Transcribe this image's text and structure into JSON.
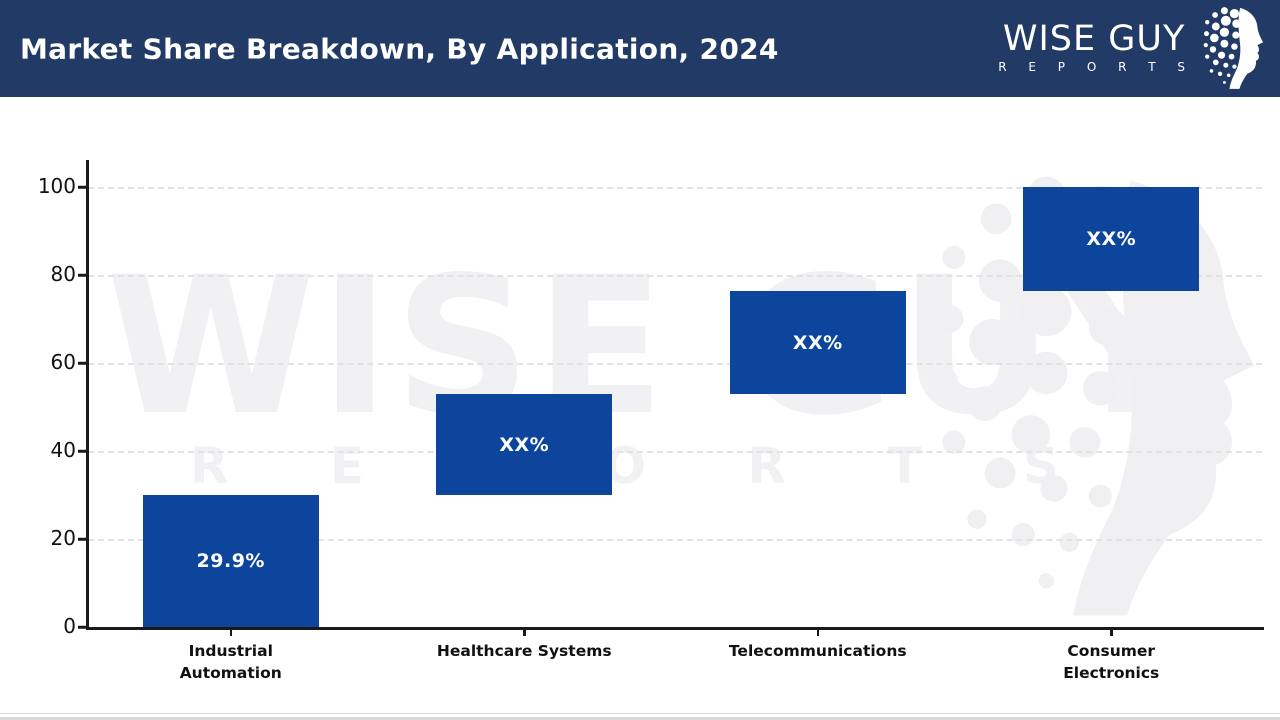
{
  "header": {
    "title": "Market Share Breakdown, By Application, 2024"
  },
  "logo": {
    "name": "WISE GUY",
    "sub": "R E P O R T S"
  },
  "watermark": {
    "name": "WISE GUY",
    "sub": "R E P O R T S"
  },
  "chart_data": {
    "type": "bar",
    "subtype": "floating-waterfall-segments",
    "title": "Market Share Breakdown, By Application, 2024",
    "categories": [
      "Industrial Automation",
      "Healthcare Systems",
      "Telecommunications",
      "Consumer Electronics"
    ],
    "xtick_display": [
      "Industrial\nAutomation",
      "Healthcare Systems",
      "Telecommunications",
      "Consumer\nElectronics"
    ],
    "segments": [
      {
        "category": "Industrial Automation",
        "start": 0,
        "end": 29.9,
        "label": "29.9%"
      },
      {
        "category": "Healthcare Systems",
        "start": 29.9,
        "end": 52.9,
        "label": "XX%"
      },
      {
        "category": "Telecommunications",
        "start": 52.9,
        "end": 76.4,
        "label": "XX%"
      },
      {
        "category": "Consumer Electronics",
        "start": 76.4,
        "end": 100,
        "label": "XX%"
      }
    ],
    "yticks": [
      0,
      20,
      40,
      60,
      80,
      100
    ],
    "ylim": [
      0,
      100
    ],
    "xlabel": "",
    "ylabel": "",
    "grid": "horizontal-dashed",
    "legend": "none",
    "bar_color": "#0d459c",
    "bar_label_color": "#ffffff"
  },
  "colors": {
    "header_bg": "#213a66",
    "bar": "#0d459c",
    "watermark": "#f1f1f4",
    "grid": "#e2e2e2",
    "axis": "#1a1a1a"
  }
}
